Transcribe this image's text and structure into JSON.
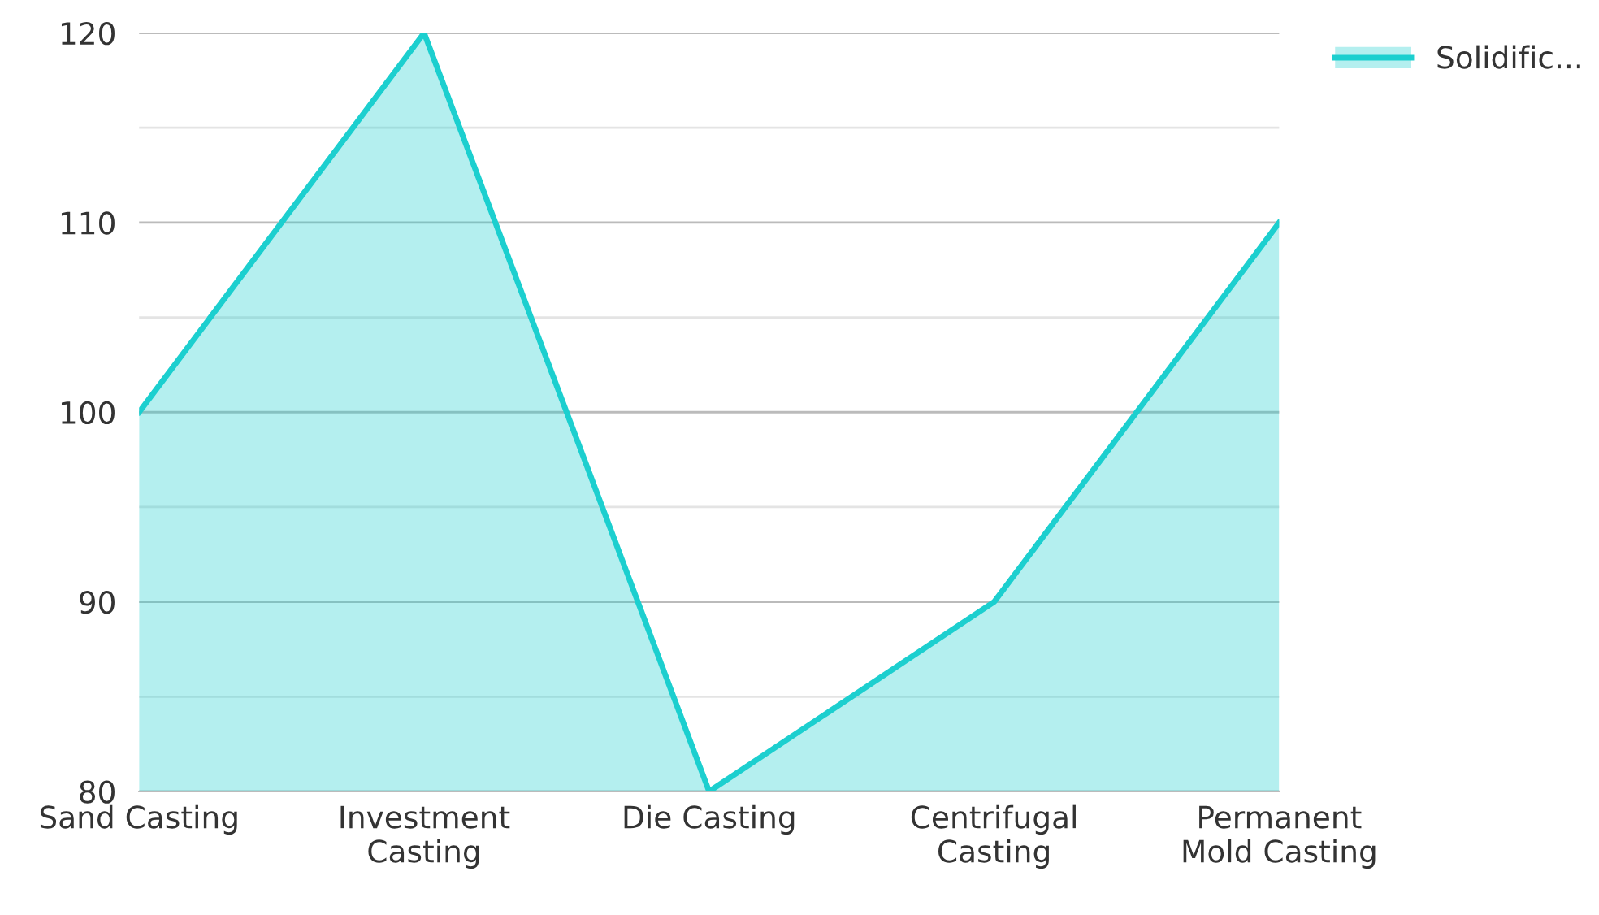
{
  "chart_data": {
    "type": "area",
    "categories": [
      "Sand Casting",
      "Investment\nCasting",
      "Die Casting",
      "Centrifugal\nCasting",
      "Permanent\nMold Casting"
    ],
    "series": [
      {
        "name": "Solidific...",
        "color": "#1ccfcf",
        "values": [
          100,
          120,
          80,
          90,
          110
        ]
      }
    ],
    "ylim": [
      80,
      120
    ],
    "yticks": [
      80,
      {
        "value": 85,
        "label": null
      },
      90,
      {
        "value": 95,
        "label": null
      },
      100,
      {
        "value": 105,
        "label": null
      },
      110,
      {
        "value": 115,
        "label": null
      },
      120
    ],
    "grid": "y",
    "legend": "top right"
  }
}
